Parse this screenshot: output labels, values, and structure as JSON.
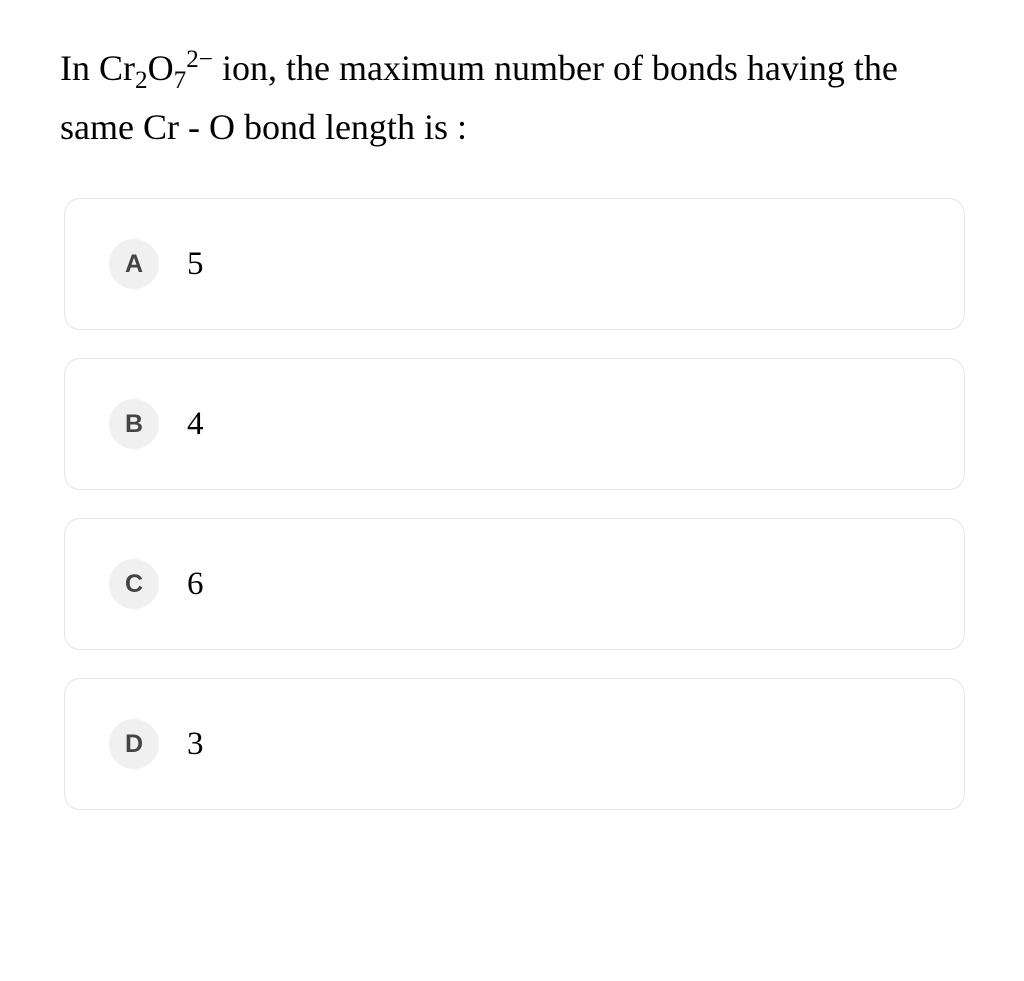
{
  "question": {
    "parts": [
      {
        "t": "text",
        "v": "In Cr"
      },
      {
        "t": "sub",
        "v": "2"
      },
      {
        "t": "text",
        "v": "O"
      },
      {
        "t": "sub",
        "v": "7"
      },
      {
        "t": "sup",
        "v": "2−"
      },
      {
        "t": "text",
        "v": " ion, the maximum number of bonds having the same Cr - O bond length is :"
      }
    ],
    "fontsize": 36,
    "color": "#000000"
  },
  "options": [
    {
      "letter": "A",
      "text": "5"
    },
    {
      "letter": "B",
      "text": "4"
    },
    {
      "letter": "C",
      "text": "6"
    },
    {
      "letter": "D",
      "text": "3"
    }
  ],
  "styling": {
    "background_color": "#ffffff",
    "option_border_color": "#e4e4e4",
    "option_border_radius": 16,
    "badge_bg": "#f0f0f0",
    "badge_text_color": "#444444",
    "badge_size": 50,
    "option_text_fontsize": 33,
    "badge_fontsize": 25,
    "option_gap": 28
  }
}
